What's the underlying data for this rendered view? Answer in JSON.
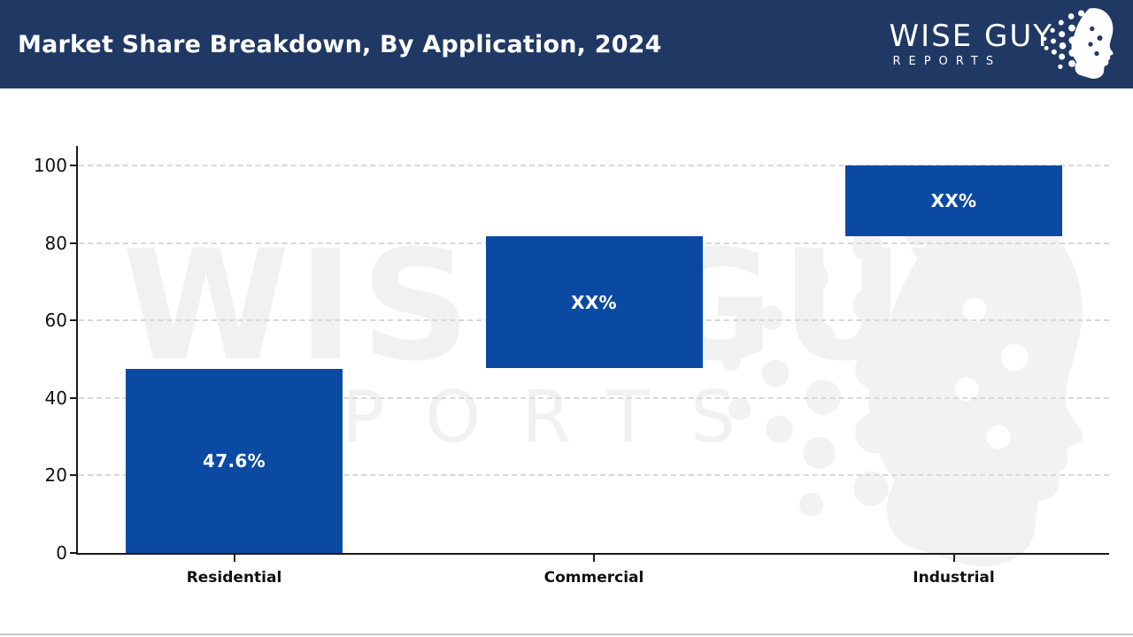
{
  "header": {
    "title": "Market Share Breakdown, By Application, 2024",
    "bg_color": "#203864",
    "logo": {
      "line1": "WISE GUY",
      "line2": "REPORTS"
    }
  },
  "watermark": {
    "line1": "WISE GUY",
    "line2": "REPORTS"
  },
  "chart_data": {
    "type": "bar",
    "subtype": "waterfall",
    "title": "Market Share Breakdown, By Application, 2024",
    "categories": [
      "Residential",
      "Commercial",
      "Industrial"
    ],
    "segments": [
      {
        "category": "Residential",
        "start": 0,
        "end": 47.6,
        "label": "47.6%"
      },
      {
        "category": "Commercial",
        "start": 47.6,
        "end": 81.8,
        "label": "XX%"
      },
      {
        "category": "Industrial",
        "start": 81.8,
        "end": 100,
        "label": "XX%"
      }
    ],
    "y_ticks": [
      0,
      20,
      40,
      60,
      80,
      100
    ],
    "ylim": [
      0,
      105
    ],
    "xlabel": "",
    "ylabel": "",
    "grid": "horizontal-dashed",
    "legend": "none",
    "bar_color": "#0b4aa2",
    "bar_label_color": "#ffffff",
    "axis_color": "#1a1a1a",
    "gridline_color": "#d8d8d8"
  }
}
